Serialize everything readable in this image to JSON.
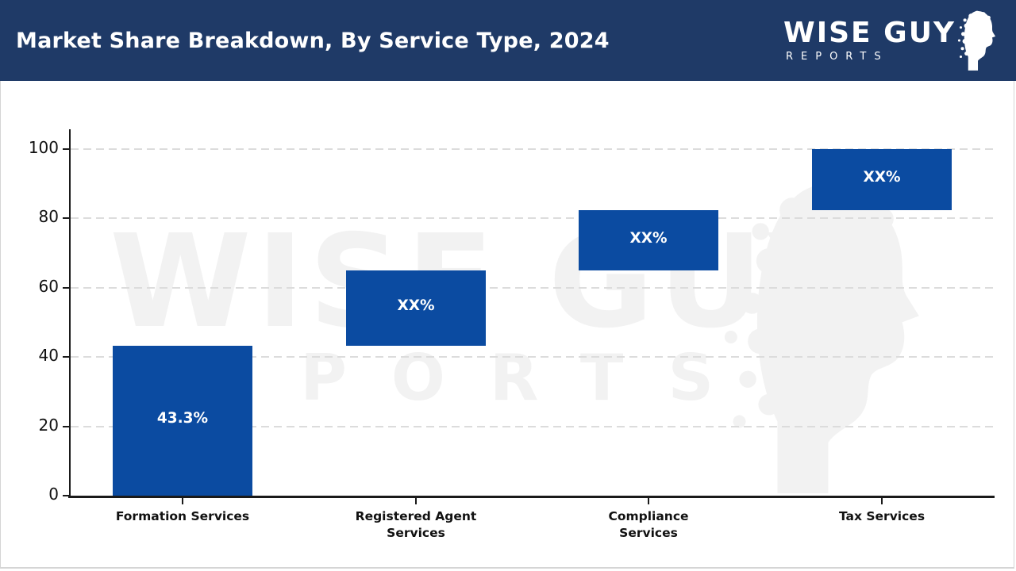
{
  "header": {
    "title": "Market Share Breakdown, By Service Type, 2024",
    "logo": {
      "line1": "WISE GUY",
      "line2": "REPORTS"
    }
  },
  "watermark": {
    "line1": "WISE GUY",
    "line2": "REPORTS"
  },
  "chart_data": {
    "type": "bar",
    "subtype": "waterfall-floating-bars",
    "title": "Market Share Breakdown, By Service Type, 2024",
    "categories": [
      "Formation Services",
      "Registered Agent Services",
      "Compliance Services",
      "Tax Services"
    ],
    "category_label_lines": [
      [
        "Formation Services"
      ],
      [
        "Registered Agent",
        "Services"
      ],
      [
        "Compliance",
        "Services"
      ],
      [
        "Tax Services"
      ]
    ],
    "segments": [
      {
        "category": "Formation Services",
        "start": 0,
        "end": 43.3,
        "label": "43.3%"
      },
      {
        "category": "Registered Agent Services",
        "start": 43.3,
        "end": 65,
        "label": "XX%"
      },
      {
        "category": "Compliance Services",
        "start": 65,
        "end": 82.3,
        "label": "XX%"
      },
      {
        "category": "Tax Services",
        "start": 82.3,
        "end": 100,
        "label": "XX%"
      }
    ],
    "ylim": [
      0,
      100
    ],
    "yticks": [
      0,
      20,
      40,
      60,
      80,
      100
    ],
    "xlabel": "",
    "ylabel": "",
    "grid": "horizontal-dashed",
    "legend": "none",
    "colors": {
      "bar": "#0b4ba1",
      "grid": "#dcdcdc",
      "axis": "#1a1a1a",
      "bar_label": "#ffffff",
      "header_bg": "#1f3a67",
      "watermark": "#f2f2f2"
    }
  }
}
